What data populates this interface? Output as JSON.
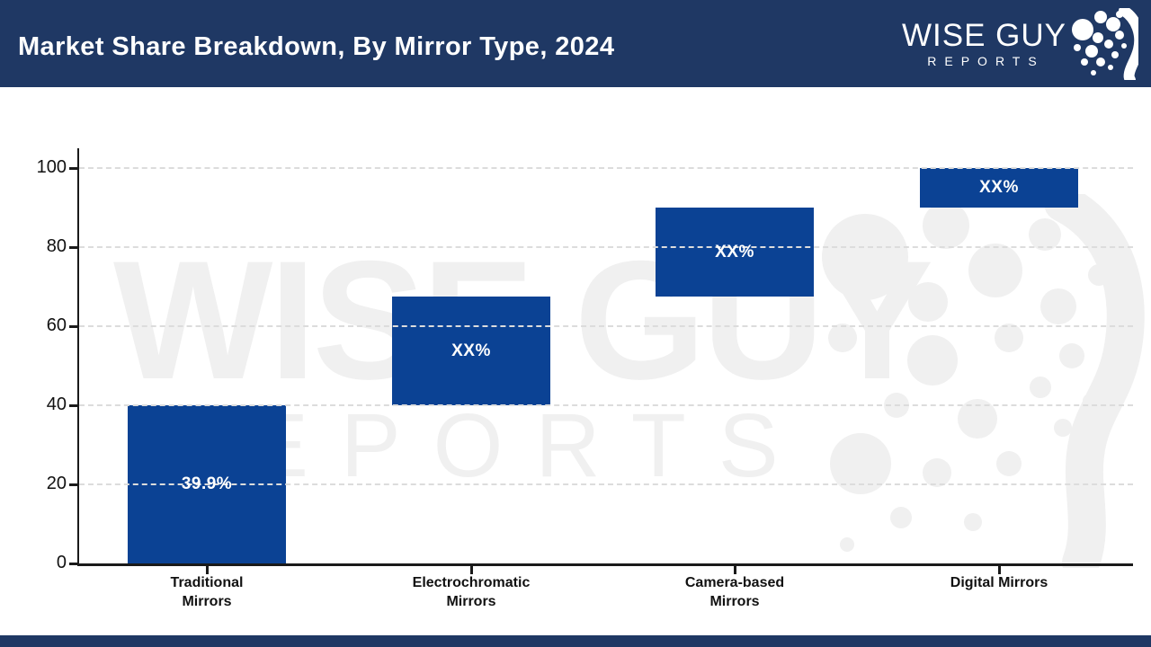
{
  "header": {
    "title": "Market Share Breakdown, By Mirror Type, 2024",
    "logo": {
      "line1": "WISE GUY",
      "line2": "REPORTS"
    }
  },
  "watermark": {
    "line1": "WISE GUY",
    "line2": "REPORTS"
  },
  "colors": {
    "header_bg": "#1f3864",
    "footer_bg": "#1f3864",
    "bar": "#0b4294",
    "bar_label": "#ffffff",
    "gridline": "#dcdcdc",
    "axis": "#1a1a1a",
    "tick_text": "#111111",
    "watermark": "#f0f0f0",
    "page_border": "#d9d9d9"
  },
  "chart_data": {
    "type": "bar",
    "subtype": "waterfall (floating stacked-range bars)",
    "title": "Market Share Breakdown, By Mirror Type, 2024",
    "categories": [
      "Traditional Mirrors",
      "Electrochromatic Mirrors",
      "Camera-based Mirrors",
      "Digital Mirrors"
    ],
    "tick_label_lines": [
      [
        "Traditional",
        "Mirrors"
      ],
      [
        "Electrochromatic",
        "Mirrors"
      ],
      [
        "Camera-based",
        "Mirrors"
      ],
      [
        "Digital Mirrors"
      ]
    ],
    "segments": [
      {
        "category": "Traditional Mirrors",
        "start": 0,
        "end": 40,
        "label": "39.9%"
      },
      {
        "category": "Electrochromatic Mirrors",
        "start": 40,
        "end": 67.5,
        "label": "XX%"
      },
      {
        "category": "Camera-based Mirrors",
        "start": 67.5,
        "end": 90,
        "label": "XX%"
      },
      {
        "category": "Digital Mirrors",
        "start": 90,
        "end": 100,
        "label": "XX%"
      }
    ],
    "xlabel": "",
    "ylabel": "",
    "ylim": [
      0,
      100
    ],
    "yticks": [
      0,
      20,
      40,
      60,
      80,
      100
    ],
    "grid": "horizontal dashed, drawn over bars",
    "legend": "none"
  }
}
